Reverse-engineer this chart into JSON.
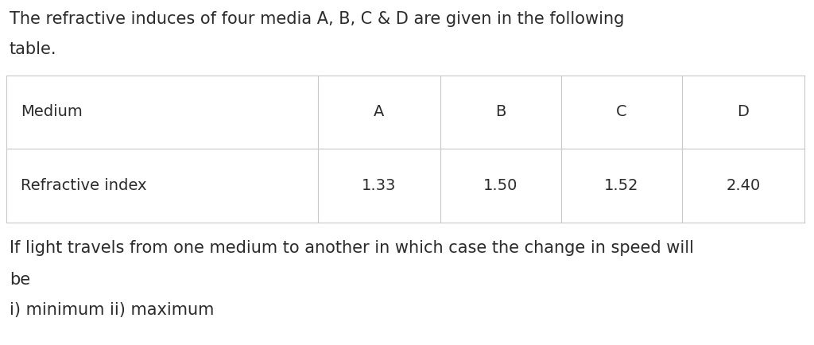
{
  "title_line1": "The refractive induces of four media A, B, C & D are given in the following",
  "title_line2": "table.",
  "table_headers": [
    "Medium",
    "A",
    "B",
    "C",
    "D"
  ],
  "table_row_label": "Refractive index",
  "table_values": [
    "1.33",
    "1.50",
    "1.52",
    "2.40"
  ],
  "footer_line1": "If light travels from one medium to another in which case the change in speed will",
  "footer_line2": "be",
  "footer_line3": "i) minimum ii) maximum",
  "bg_color": "#ffffff",
  "text_color": "#2b2b2b",
  "table_border_color": "#c8c8c8",
  "font_size_title": 15,
  "font_size_table": 14,
  "font_size_footer": 15,
  "fig_width": 10.24,
  "fig_height": 4.34,
  "dpi": 100
}
